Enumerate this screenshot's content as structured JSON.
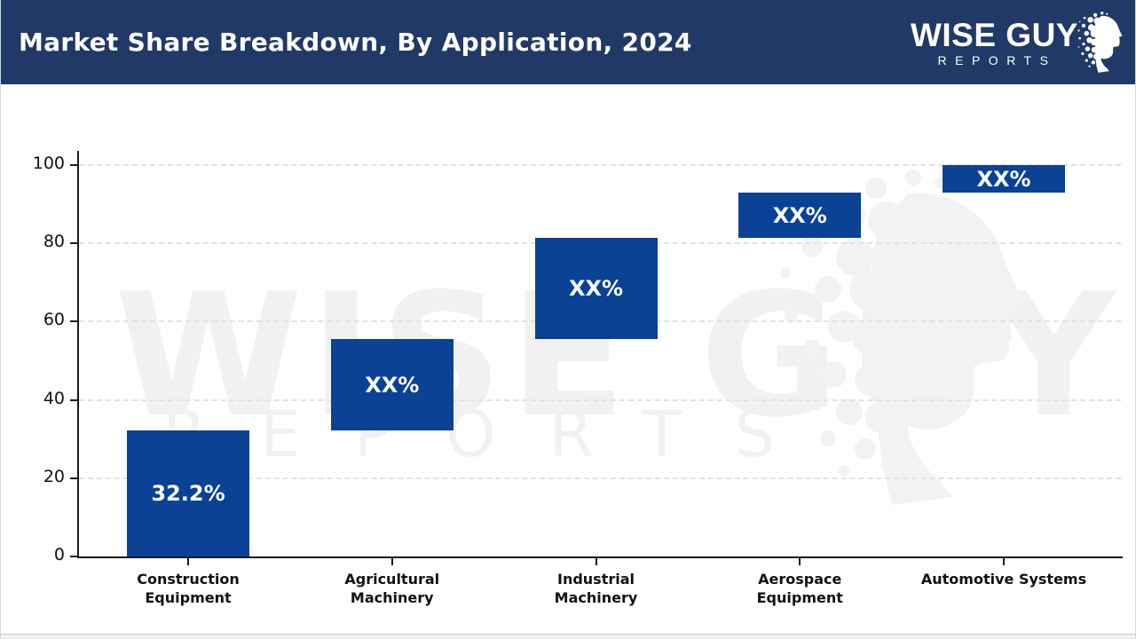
{
  "header": {
    "title": "Market Share Breakdown, By Application, 2024",
    "bg_color": "#213966",
    "text_color": "#ffffff",
    "brand": {
      "line1": "WISE GUY",
      "line2": "REPORTS"
    }
  },
  "watermark": {
    "line1": "WISE GUY",
    "line2": "REPORTS"
  },
  "chart_data": {
    "type": "bar",
    "subtype": "waterfall",
    "title": "Market Share Breakdown, By Application, 2024",
    "categories": [
      [
        "Construction",
        "Equipment"
      ],
      [
        "Agricultural",
        "Machinery"
      ],
      [
        "Industrial",
        "Machinery"
      ],
      [
        "Aerospace",
        "Equipment"
      ],
      [
        "Automotive Systems"
      ]
    ],
    "segments": [
      {
        "category": "Construction Equipment",
        "start": 0,
        "end": 32.2,
        "label": "32.2%"
      },
      {
        "category": "Agricultural Machinery",
        "start": 32.2,
        "end": 55.5,
        "label": "XX%"
      },
      {
        "category": "Industrial Machinery",
        "start": 55.5,
        "end": 81.4,
        "label": "XX%"
      },
      {
        "category": "Aerospace Equipment",
        "start": 81.4,
        "end": 92.9,
        "label": "XX%"
      },
      {
        "category": "Automotive Systems",
        "start": 92.9,
        "end": 100,
        "label": "XX%"
      }
    ],
    "yticks": [
      0,
      20,
      40,
      60,
      80,
      100
    ],
    "ylim": [
      0,
      103.6
    ],
    "grid": "horizontal-dashed",
    "legend": "none",
    "colors": {
      "bar": "#0b4295",
      "bar_label": "#ffffff",
      "axis": "#1a1a1a",
      "grid": "#e2e2e2",
      "tick_label": "#111111"
    }
  }
}
